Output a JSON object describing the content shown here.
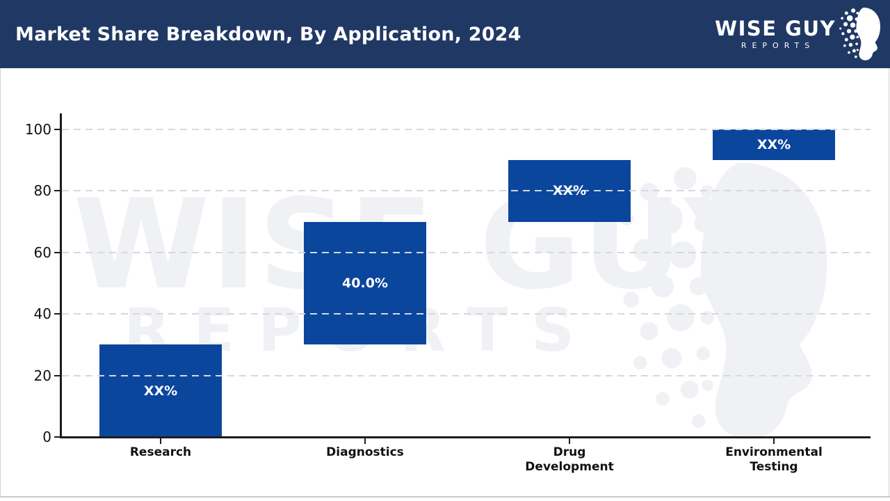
{
  "header": {
    "title": "Market Share Breakdown, By Application, 2024",
    "logo": {
      "line1": "WISE GUY",
      "line2": "REPORTS"
    }
  },
  "watermark": {
    "line1": "WISE GUY",
    "line2": "REPORTS"
  },
  "chart_data": {
    "type": "bar",
    "subtype": "floating-waterfall",
    "title": "Market Share Breakdown, By Application, 2024",
    "categories": [
      "Research",
      "Diagnostics",
      "Drug Development",
      "Environmental Testing"
    ],
    "series": [
      {
        "name": "Market Share (%)",
        "segments": [
          {
            "category": "Research",
            "start": 0,
            "end": 30,
            "label": "XX%"
          },
          {
            "category": "Diagnostics",
            "start": 30,
            "end": 70,
            "label": "40.0%"
          },
          {
            "category": "Drug Development",
            "start": 70,
            "end": 90,
            "label": "XX%"
          },
          {
            "category": "Environmental Testing",
            "start": 90,
            "end": 100,
            "label": "XX%"
          }
        ]
      }
    ],
    "ylim": [
      0,
      100
    ],
    "yticks": [
      0,
      20,
      40,
      60,
      80,
      100
    ],
    "xlabel": "",
    "ylabel": "",
    "grid": "horizontal-dashed",
    "legend": "none"
  },
  "colors": {
    "header_bg": "#203864",
    "bar_fill": "#0b469d",
    "axis": "#1c1c1c",
    "grid": "#d5d8dd",
    "watermark": "#f0f1f4",
    "page_bg": "#ffffff",
    "frame_border": "#c9c9c9"
  }
}
